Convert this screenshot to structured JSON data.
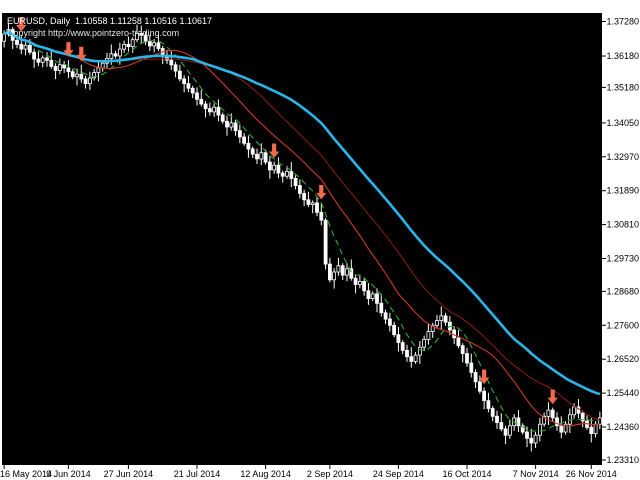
{
  "header": {
    "symbol_line": "EURUSD, Daily  1.10558 1.11258 1.10516 1.10617",
    "copyright_line": "Copyright http://www.pointzero-trading.com"
  },
  "chart_data": {
    "type": "candlestick",
    "symbol": "EURUSD",
    "timeframe": "Daily",
    "quote": {
      "open": "1.10558",
      "high": "1.11258",
      "low": "1.10516",
      "close": "1.10617"
    },
    "grid": false,
    "legend_position": "none",
    "ylim": [
      1.2315,
      1.3755
    ],
    "y_tick_labels": [
      "1.37280",
      "1.36180",
      "1.35180",
      "1.34050",
      "1.32970",
      "1.31890",
      "1.30810",
      "1.29730",
      "1.28680",
      "1.27600",
      "1.26520",
      "1.25440",
      "1.24360",
      "1.23310"
    ],
    "x_tick_labels": [
      "16 May 2014",
      "9 Jun 2014",
      "27 Jun 2014",
      "21 Jul 2014",
      "12 Aug 2014",
      "2 Sep 2014",
      "24 Sep 2014",
      "16 Oct 2014",
      "7 Nov 2014",
      "26 Nov 2014"
    ],
    "x_tick_indices": [
      0,
      15,
      29,
      45,
      61,
      76,
      92,
      108,
      124,
      137
    ],
    "sell_arrow_indices": [
      4,
      15,
      18,
      63,
      74,
      112,
      128
    ],
    "moving_averages": [
      {
        "name": "fast-green-dashed",
        "period": 7,
        "color": "#2fae2f",
        "dashed": true,
        "width": 1.1
      },
      {
        "name": "mid-red",
        "period": 18,
        "color": "#cf3a28",
        "dashed": false,
        "width": 1.1
      },
      {
        "name": "mid2-dark-red",
        "period": 30,
        "color": "#8d1d14",
        "dashed": false,
        "width": 1.0
      },
      {
        "name": "slow-cyan",
        "period": 45,
        "color": "#27b7ea",
        "dashed": false,
        "width": 2.6
      }
    ],
    "colors": {
      "margin": "#ffffff",
      "background": "#000000",
      "bull_body": "#000000",
      "bear_body": "#ffffff",
      "candle_border": "#ffffff",
      "wick": "#ffffff",
      "arrow": "#f26b4e",
      "axis_text": "#000000",
      "header_text": "#ffffff"
    },
    "candles": [
      [
        1.3665,
        1.37,
        1.3645,
        1.3688
      ],
      [
        1.3688,
        1.372,
        1.368,
        1.3702
      ],
      [
        1.3702,
        1.371,
        1.364,
        1.3668
      ],
      [
        1.3668,
        1.3686,
        1.3643,
        1.3655
      ],
      [
        1.3655,
        1.3685,
        1.3624,
        1.364
      ],
      [
        1.364,
        1.3662,
        1.362,
        1.3652
      ],
      [
        1.3652,
        1.3672,
        1.3622,
        1.363
      ],
      [
        1.363,
        1.3642,
        1.358,
        1.3608
      ],
      [
        1.3608,
        1.3633,
        1.3586,
        1.3598
      ],
      [
        1.3598,
        1.362,
        1.3582,
        1.3612
      ],
      [
        1.3612,
        1.363,
        1.3584,
        1.3604
      ],
      [
        1.3604,
        1.3634,
        1.3577,
        1.3585
      ],
      [
        1.3585,
        1.3595,
        1.3544,
        1.3572
      ],
      [
        1.3572,
        1.361,
        1.356,
        1.359
      ],
      [
        1.359,
        1.3602,
        1.3564,
        1.358
      ],
      [
        1.358,
        1.3605,
        1.3548,
        1.3568
      ],
      [
        1.3568,
        1.3576,
        1.3544,
        1.3552
      ],
      [
        1.3552,
        1.3578,
        1.3524,
        1.356
      ],
      [
        1.356,
        1.359,
        1.3533,
        1.3545
      ],
      [
        1.3545,
        1.3555,
        1.3514,
        1.353
      ],
      [
        1.353,
        1.3568,
        1.351,
        1.3548
      ],
      [
        1.3548,
        1.3577,
        1.354,
        1.3565
      ],
      [
        1.3565,
        1.3605,
        1.3537,
        1.358
      ],
      [
        1.358,
        1.3603,
        1.3568,
        1.3595
      ],
      [
        1.3595,
        1.3628,
        1.3579,
        1.361
      ],
      [
        1.361,
        1.3655,
        1.359,
        1.3625
      ],
      [
        1.3625,
        1.3635,
        1.361,
        1.3618
      ],
      [
        1.3618,
        1.366,
        1.359,
        1.364
      ],
      [
        1.364,
        1.3667,
        1.3628,
        1.3655
      ],
      [
        1.3655,
        1.368,
        1.3632,
        1.3648
      ],
      [
        1.3648,
        1.3678,
        1.3628,
        1.367
      ],
      [
        1.367,
        1.3718,
        1.3662,
        1.369
      ],
      [
        1.369,
        1.3715,
        1.3657,
        1.3685
      ],
      [
        1.3685,
        1.3695,
        1.3653,
        1.3665
      ],
      [
        1.3665,
        1.3685,
        1.3634,
        1.365
      ],
      [
        1.365,
        1.3672,
        1.363,
        1.366
      ],
      [
        1.366,
        1.3685,
        1.3634,
        1.3642
      ],
      [
        1.3642,
        1.365,
        1.3592,
        1.362
      ],
      [
        1.362,
        1.3638,
        1.3593,
        1.3605
      ],
      [
        1.3605,
        1.3635,
        1.3574,
        1.359
      ],
      [
        1.359,
        1.36,
        1.355,
        1.357
      ],
      [
        1.357,
        1.359,
        1.3537,
        1.3545
      ],
      [
        1.3545,
        1.3557,
        1.3502,
        1.353
      ],
      [
        1.353,
        1.3555,
        1.3503,
        1.3515
      ],
      [
        1.3515,
        1.3523,
        1.3484,
        1.35
      ],
      [
        1.35,
        1.3518,
        1.346,
        1.348
      ],
      [
        1.348,
        1.351,
        1.3457,
        1.3465
      ],
      [
        1.3465,
        1.3475,
        1.3422,
        1.345
      ],
      [
        1.345,
        1.347,
        1.3428,
        1.344
      ],
      [
        1.344,
        1.3467,
        1.3424,
        1.3455
      ],
      [
        1.3455,
        1.348,
        1.341,
        1.343
      ],
      [
        1.343,
        1.3438,
        1.3402,
        1.341
      ],
      [
        1.341,
        1.3428,
        1.3364,
        1.3392
      ],
      [
        1.3392,
        1.3435,
        1.338,
        1.3405
      ],
      [
        1.3405,
        1.3415,
        1.3364,
        1.338
      ],
      [
        1.338,
        1.34,
        1.334,
        1.336
      ],
      [
        1.336,
        1.3372,
        1.3332,
        1.334
      ],
      [
        1.334,
        1.3365,
        1.3294,
        1.3322
      ],
      [
        1.3322,
        1.333,
        1.3293,
        1.3305
      ],
      [
        1.3305,
        1.3323,
        1.3274,
        1.329
      ],
      [
        1.329,
        1.334,
        1.327,
        1.331
      ],
      [
        1.331,
        1.332,
        1.3272,
        1.328
      ],
      [
        1.328,
        1.33,
        1.3227,
        1.3255
      ],
      [
        1.3255,
        1.3282,
        1.3243,
        1.327
      ],
      [
        1.327,
        1.3295,
        1.3229,
        1.3245
      ],
      [
        1.3245,
        1.3253,
        1.3215,
        1.3235
      ],
      [
        1.3235,
        1.3268,
        1.3227,
        1.325
      ],
      [
        1.325,
        1.328,
        1.32,
        1.3228
      ],
      [
        1.3228,
        1.3238,
        1.3193,
        1.3205
      ],
      [
        1.3205,
        1.3225,
        1.3164,
        1.318
      ],
      [
        1.318,
        1.3192,
        1.314,
        1.316
      ],
      [
        1.316,
        1.3185,
        1.3137,
        1.3145
      ],
      [
        1.3145,
        1.3158,
        1.3117,
        1.315
      ],
      [
        1.315,
        1.3168,
        1.3108,
        1.312
      ],
      [
        1.312,
        1.315,
        1.3079,
        1.3095
      ],
      [
        1.3095,
        1.3102,
        1.2938,
        1.2955
      ],
      [
        1.2955,
        1.2975,
        1.2897,
        1.2905
      ],
      [
        1.2905,
        1.2942,
        1.2877,
        1.293
      ],
      [
        1.293,
        1.2975,
        1.2918,
        1.295
      ],
      [
        1.295,
        1.2958,
        1.2904,
        1.292
      ],
      [
        1.292,
        1.2958,
        1.29,
        1.294
      ],
      [
        1.294,
        1.297,
        1.2902,
        1.291
      ],
      [
        1.291,
        1.292,
        1.2862,
        1.289
      ],
      [
        1.289,
        1.292,
        1.2878,
        1.29
      ],
      [
        1.29,
        1.2912,
        1.2854,
        1.287
      ],
      [
        1.287,
        1.2895,
        1.2825,
        1.2845
      ],
      [
        1.2845,
        1.2868,
        1.2837,
        1.286
      ],
      [
        1.286,
        1.2878,
        1.2802,
        1.283
      ],
      [
        1.283,
        1.286,
        1.2788,
        1.28
      ],
      [
        1.28,
        1.281,
        1.2764,
        1.278
      ],
      [
        1.278,
        1.28,
        1.274,
        1.276
      ],
      [
        1.276,
        1.2772,
        1.2722,
        1.273
      ],
      [
        1.273,
        1.2755,
        1.2677,
        1.2705
      ],
      [
        1.2705,
        1.2713,
        1.2668,
        1.268
      ],
      [
        1.268,
        1.2698,
        1.2644,
        1.266
      ],
      [
        1.266,
        1.269,
        1.2625,
        1.2645
      ],
      [
        1.2645,
        1.2675,
        1.2637,
        1.2665
      ],
      [
        1.2665,
        1.271,
        1.2637,
        1.269
      ],
      [
        1.269,
        1.2727,
        1.2678,
        1.2715
      ],
      [
        1.2715,
        1.2765,
        1.2699,
        1.274
      ],
      [
        1.274,
        1.2768,
        1.272,
        1.276
      ],
      [
        1.276,
        1.2793,
        1.2752,
        1.2775
      ],
      [
        1.2775,
        1.282,
        1.2747,
        1.279
      ],
      [
        1.279,
        1.28,
        1.2758,
        1.277
      ],
      [
        1.277,
        1.279,
        1.2729,
        1.2745
      ],
      [
        1.2745,
        1.2757,
        1.27,
        1.272
      ],
      [
        1.272,
        1.2745,
        1.2687,
        1.2695
      ],
      [
        1.2695,
        1.2703,
        1.2642,
        1.267
      ],
      [
        1.267,
        1.2688,
        1.2628,
        1.264
      ],
      [
        1.264,
        1.267,
        1.2594,
        1.261
      ],
      [
        1.261,
        1.262,
        1.256,
        1.258
      ],
      [
        1.258,
        1.26,
        1.2542,
        1.255
      ],
      [
        1.255,
        1.2562,
        1.2492,
        1.252
      ],
      [
        1.252,
        1.2545,
        1.2483,
        1.2495
      ],
      [
        1.2495,
        1.2503,
        1.2454,
        1.247
      ],
      [
        1.247,
        1.2488,
        1.243,
        1.245
      ],
      [
        1.245,
        1.248,
        1.2422,
        1.243
      ],
      [
        1.243,
        1.244,
        1.2382,
        1.241
      ],
      [
        1.241,
        1.246,
        1.2398,
        1.244
      ],
      [
        1.244,
        1.2477,
        1.2424,
        1.2465
      ],
      [
        1.2465,
        1.249,
        1.242,
        1.244
      ],
      [
        1.244,
        1.2448,
        1.2412,
        1.242
      ],
      [
        1.242,
        1.2438,
        1.2372,
        1.24
      ],
      [
        1.24,
        1.243,
        1.2358,
        1.2385
      ],
      [
        1.2385,
        1.242,
        1.2369,
        1.241
      ],
      [
        1.241,
        1.2465,
        1.239,
        1.2445
      ],
      [
        1.2445,
        1.2482,
        1.2437,
        1.247
      ],
      [
        1.247,
        1.2515,
        1.2442,
        1.249
      ],
      [
        1.249,
        1.2498,
        1.2453,
        1.2465
      ],
      [
        1.2465,
        1.2483,
        1.2424,
        1.244
      ],
      [
        1.244,
        1.247,
        1.24,
        1.242
      ],
      [
        1.242,
        1.2455,
        1.2412,
        1.2445
      ],
      [
        1.2445,
        1.2495,
        1.2417,
        1.2475
      ],
      [
        1.2475,
        1.2512,
        1.2463,
        1.25
      ],
      [
        1.25,
        1.2525,
        1.2464,
        1.248
      ],
      [
        1.248,
        1.2488,
        1.2435,
        1.2455
      ],
      [
        1.2455,
        1.2473,
        1.2427,
        1.2435
      ],
      [
        1.2435,
        1.2465,
        1.2387,
        1.2415
      ],
      [
        1.2415,
        1.2455,
        1.2403,
        1.2445
      ],
      [
        1.2445,
        1.2485,
        1.2429,
        1.2465
      ]
    ]
  }
}
